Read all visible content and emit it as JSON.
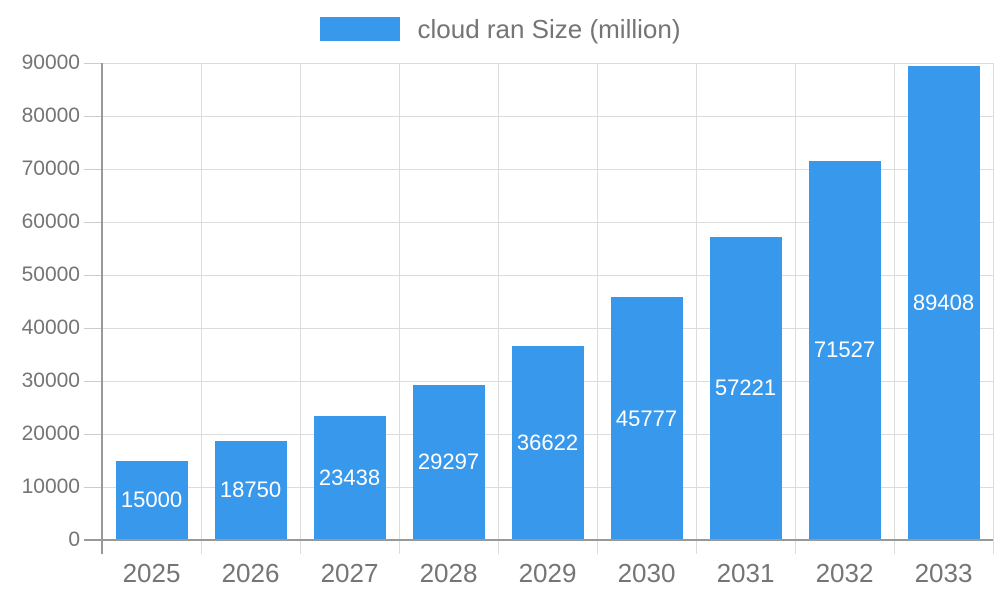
{
  "chart_data": {
    "type": "bar",
    "title": "",
    "legend": "cloud ran Size (million)",
    "legend_position": "top-center",
    "categories": [
      "2025",
      "2026",
      "2027",
      "2028",
      "2029",
      "2030",
      "2031",
      "2032",
      "2033"
    ],
    "values": [
      15000,
      18750,
      23438,
      29297,
      36622,
      45777,
      57221,
      71527,
      89408
    ],
    "value_labels": [
      "15000",
      "18750",
      "23438",
      "29297",
      "36622",
      "45777",
      "57221",
      "71527",
      "89408"
    ],
    "xlabel": "",
    "ylabel": "",
    "ylim": [
      0,
      90000
    ],
    "ytick_step": 10000,
    "ytick_labels": [
      "0",
      "10000",
      "20000",
      "30000",
      "40000",
      "50000",
      "60000",
      "70000",
      "80000",
      "90000"
    ],
    "grid": true,
    "colors": {
      "bar": "#3898ec",
      "value_label": "#ffffff",
      "axis_text": "#757575",
      "axis_line": "#999999",
      "gridline": "#dcdcdc",
      "tick": "#cccccc",
      "background": "#ffffff"
    }
  }
}
